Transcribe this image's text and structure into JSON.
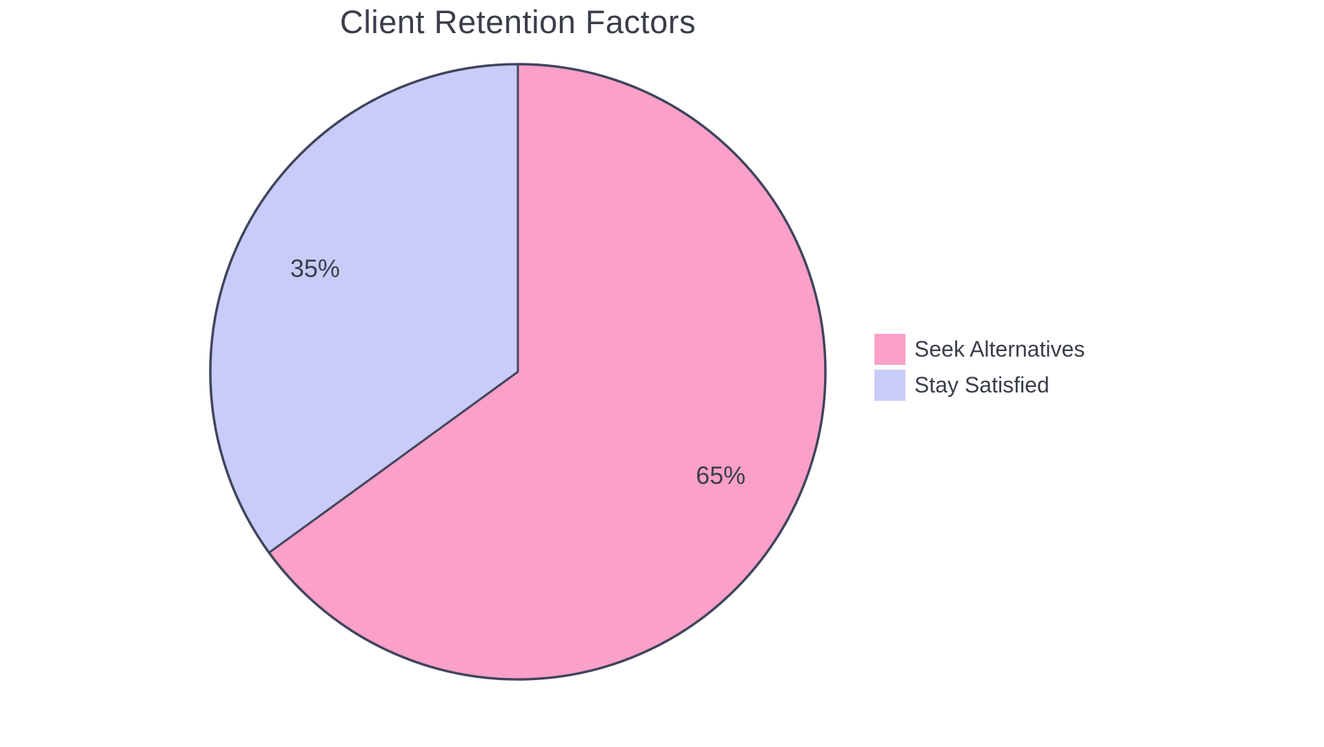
{
  "figure": {
    "background": "#FFFFFF"
  },
  "chart_data": {
    "type": "pie",
    "title": "Client Retention Factors",
    "slices": [
      {
        "label": "Seek Alternatives",
        "value": 65,
        "pct_label": "65%",
        "color": "#FBA0C8"
      },
      {
        "label": "Stay Satisfied",
        "value": 35,
        "pct_label": "35%",
        "color": "#C9CBF8"
      }
    ],
    "start_angle_deg": 0,
    "direction": "clockwise",
    "border_color": "#40455C",
    "label_color": "#3A3E49",
    "legend_position": "right",
    "legend_labels": [
      "Seek Alternatives",
      "Stay Satisfied"
    ]
  }
}
